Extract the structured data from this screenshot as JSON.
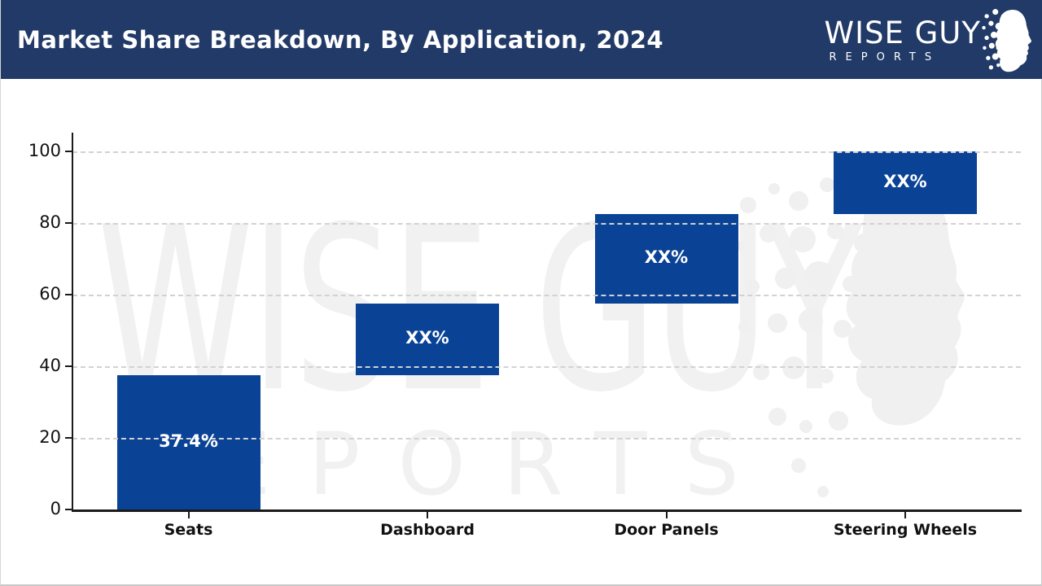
{
  "header": {
    "title": "Market Share Breakdown, By Application, 2024",
    "logo": {
      "line1": "WISE GUY",
      "line2": "REPORTS"
    }
  },
  "watermark": {
    "line1": "WISE GUY",
    "line2": "REPORTS"
  },
  "colors": {
    "header_bg": "#223a68",
    "bar": "#0a4296",
    "grid": "#d2d2d2",
    "axis": "#1a1a1a",
    "watermark": "#f1f1f2",
    "label_text": "#ffffff"
  },
  "chart_data": {
    "type": "bar",
    "subtype": "waterfall",
    "title": "Market Share Breakdown, By Application, 2024",
    "categories": [
      "Seats",
      "Dashboard",
      "Door Panels",
      "Steering Wheels"
    ],
    "segments": [
      {
        "category": "Seats",
        "start": 0,
        "end": 37.4,
        "label": "37.4%"
      },
      {
        "category": "Dashboard",
        "start": 37.4,
        "end": 57.4,
        "label": "XX%"
      },
      {
        "category": "Door Panels",
        "start": 57.4,
        "end": 82.4,
        "label": "XX%"
      },
      {
        "category": "Steering Wheels",
        "start": 82.4,
        "end": 100,
        "label": "XX%"
      }
    ],
    "xlabel": "",
    "ylabel": "",
    "yticks": [
      0,
      20,
      40,
      60,
      80,
      100
    ],
    "ylim": [
      0,
      105
    ],
    "grid": "horizontal dashed, drawn over bars",
    "legend": "none",
    "bar_color": "#0a4296"
  }
}
